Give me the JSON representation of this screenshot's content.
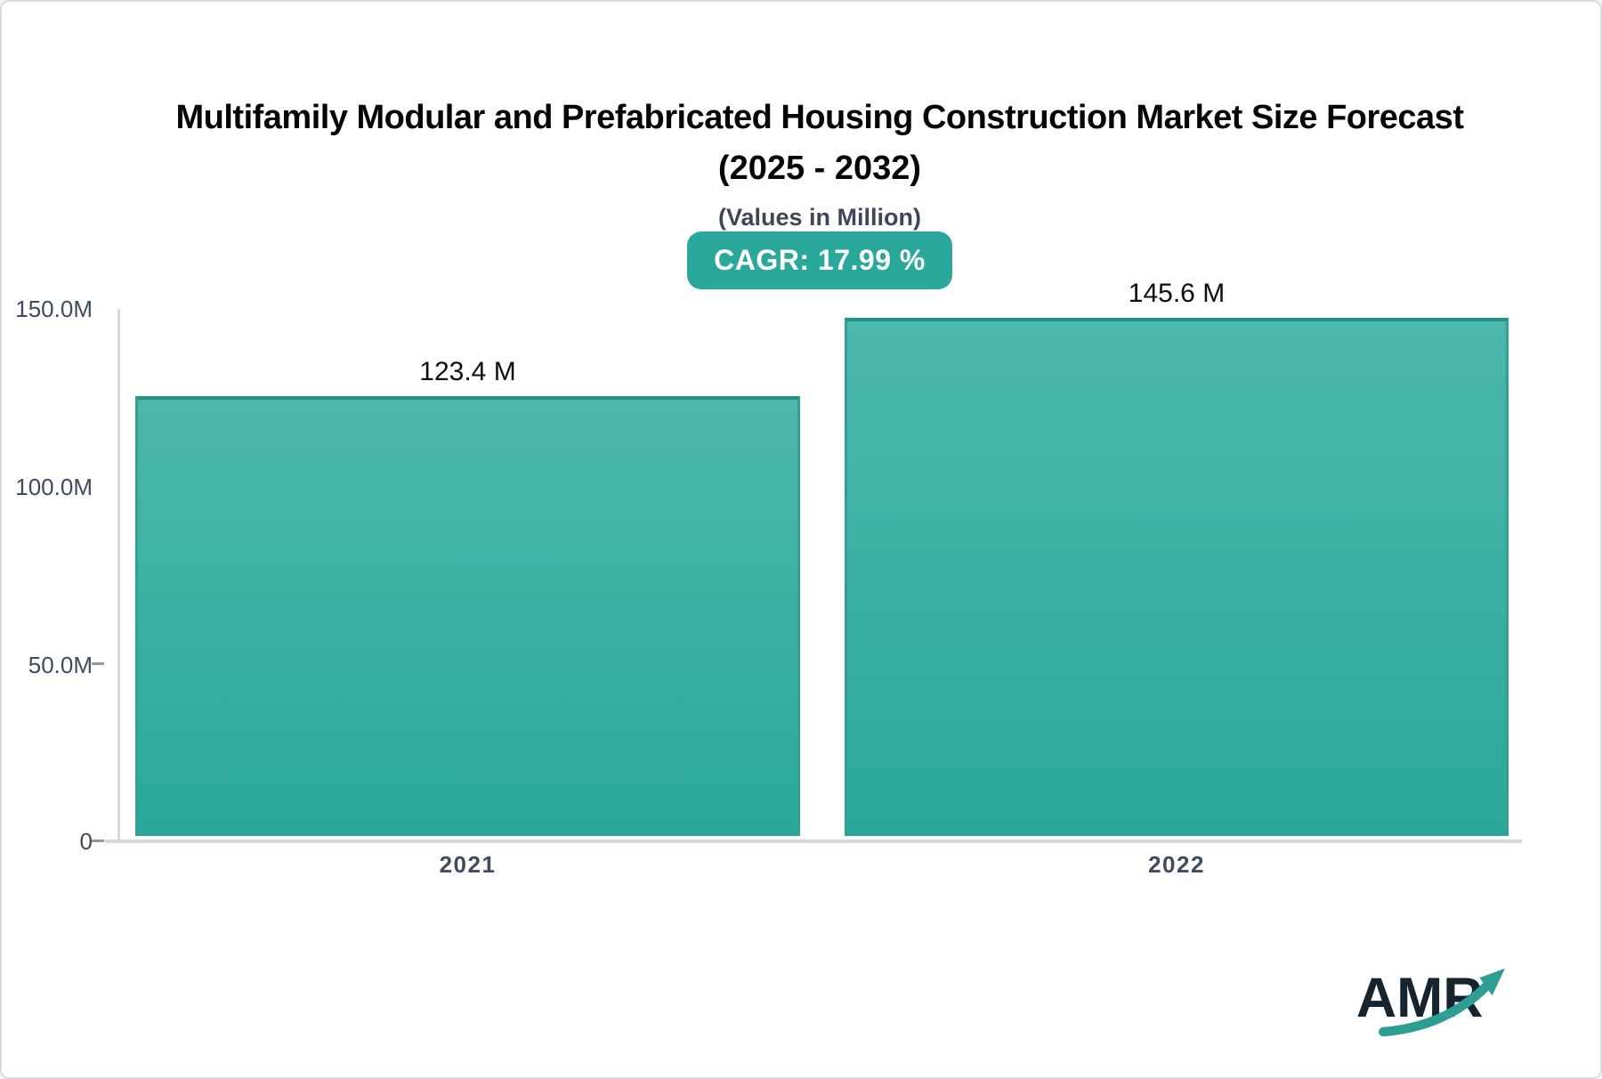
{
  "header": {
    "title_line1": "Multifamily Modular and Prefabricated Housing Construction Market Size Forecast",
    "title_line2": "(2025 - 2032)",
    "subtitle": "(Values in Million)",
    "cagr_label": "CAGR: 17.99 %"
  },
  "chart_data": {
    "type": "bar",
    "title": "Multifamily Modular and Prefabricated Housing Construction Market Size Forecast (2025 - 2032)",
    "subtitle": "(Values in Million)",
    "cagr_percent": 17.99,
    "categories": [
      "2021",
      "2022"
    ],
    "values": [
      123.4,
      145.6
    ],
    "value_labels": [
      "123.4 M",
      "145.6 M"
    ],
    "unit": "Million",
    "ylim": [
      0,
      150
    ],
    "y_ticks": [
      {
        "label": "150.0M",
        "value": 150
      },
      {
        "label": "100.0M",
        "value": 100
      },
      {
        "label": "50.0M",
        "value": 50
      },
      {
        "label": "0",
        "value": 0
      }
    ],
    "grid": false,
    "legend": "none",
    "bar_gradient_top": "#4db7ac",
    "bar_gradient_bottom": "#2aa89b",
    "bar_border_color": "#1f9488",
    "bar_side_border_color": "#33a094"
  },
  "colors": {
    "accent": "#2aa89b",
    "axis_text": "#3e4b5e",
    "axis_line": "#d4d7db",
    "title_text": "#050505",
    "value_label_text": "#0c0d10"
  },
  "logo": {
    "text": "AMR",
    "icon": "growth-arrow-icon",
    "text_color": "#16242f",
    "arrow_color": "#2e9e94"
  }
}
